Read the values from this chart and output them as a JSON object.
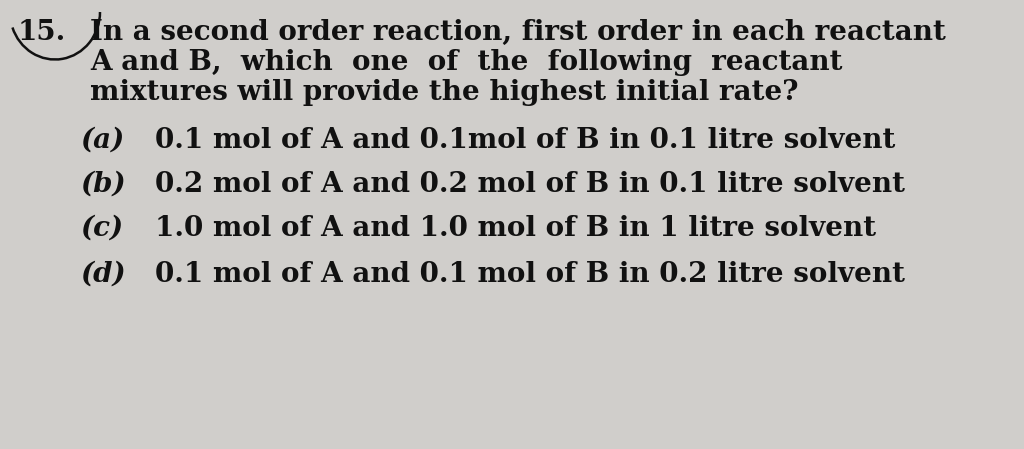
{
  "bg_color": "#d0cecb",
  "text_color": "#111111",
  "question_number": "15.",
  "question_line1": "In a second order reaction, first order in each reactant",
  "question_line2": "A and B,  which  one  of  the  following  reactant",
  "question_line3": "mixtures will provide the highest initial rate?",
  "options": [
    {
      "label": "(a)",
      "text": "0.1 mol of A and 0.1mol of B in 0.1 litre solvent"
    },
    {
      "label": "(b)",
      "text": "0.2 mol of A and 0.2 mol of B in 0.1 litre solvent"
    },
    {
      "label": "(c)",
      "text": "1.0 mol of A and 1.0 mol of B in 1 litre solvent"
    },
    {
      "label": "(d)",
      "text": "0.1 mol of A and 0.1 mol of B in 0.2 litre solvent"
    }
  ],
  "font_size_question": 20,
  "font_size_options": 20,
  "font_family": "DejaVu Serif"
}
